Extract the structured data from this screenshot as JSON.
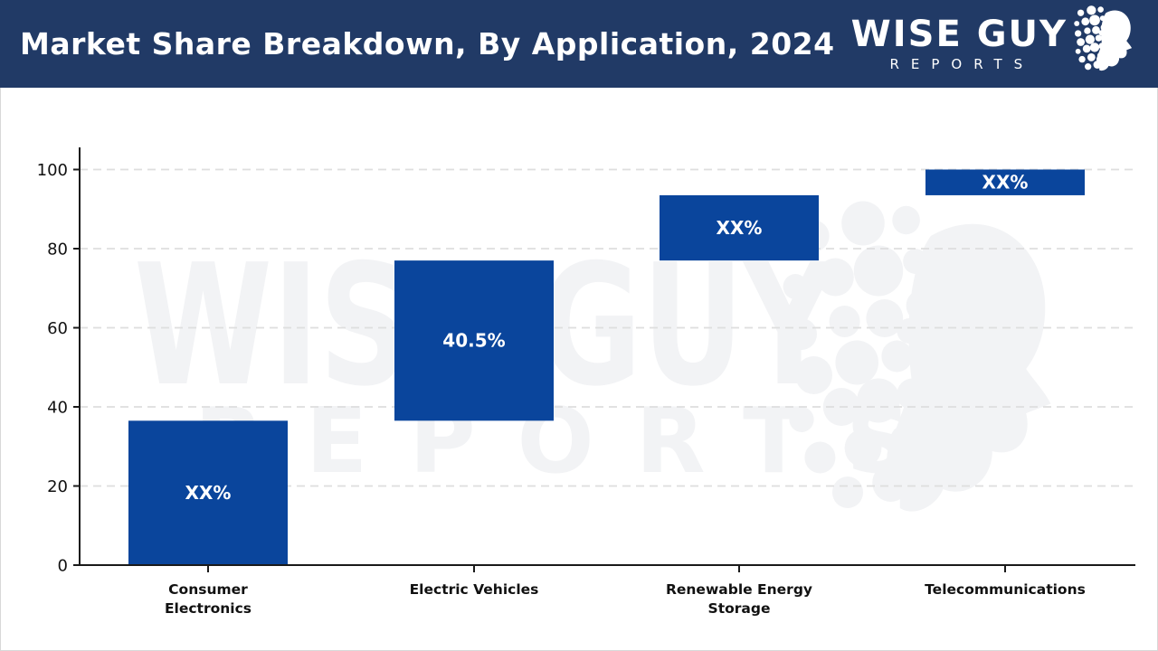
{
  "header": {
    "title": "Market Share Breakdown, By Application, 2024",
    "bg_color": "#213a66",
    "logo": {
      "line1": "WISE GUY",
      "line2": "REPORTS"
    }
  },
  "watermark": {
    "line1": "WISE GUY",
    "line2": "REPORTS"
  },
  "chart_data": {
    "type": "bar",
    "subtype": "waterfall",
    "title": "Market Share Breakdown, By Application, 2024",
    "xlabel": "",
    "ylabel": "",
    "ylim": [
      0,
      105
    ],
    "yticks": [
      0,
      20,
      40,
      60,
      80,
      100
    ],
    "grid": "horizontal dashed",
    "legend_position": "none",
    "bar_color": "#0a459c",
    "label_color": "#ffffff",
    "categories": [
      "Consumer Electronics",
      "Electric Vehicles",
      "Renewable Energy Storage",
      "Telecommunications"
    ],
    "bars": [
      {
        "category": "Consumer Electronics",
        "tick_lines": [
          "Consumer",
          "Electronics"
        ],
        "start": 0,
        "end": 36.5,
        "value_pct": 36.5,
        "label": "XX%"
      },
      {
        "category": "Electric Vehicles",
        "tick_lines": [
          "Electric Vehicles"
        ],
        "start": 36.5,
        "end": 77.0,
        "value_pct": 40.5,
        "label": "40.5%"
      },
      {
        "category": "Renewable Energy Storage",
        "tick_lines": [
          "Renewable Energy",
          "Storage"
        ],
        "start": 77.0,
        "end": 93.5,
        "value_pct": 16.5,
        "label": "XX%"
      },
      {
        "category": "Telecommunications",
        "tick_lines": [
          "Telecommunications"
        ],
        "start": 93.5,
        "end": 100,
        "value_pct": 6.5,
        "label": "XX%"
      }
    ]
  }
}
